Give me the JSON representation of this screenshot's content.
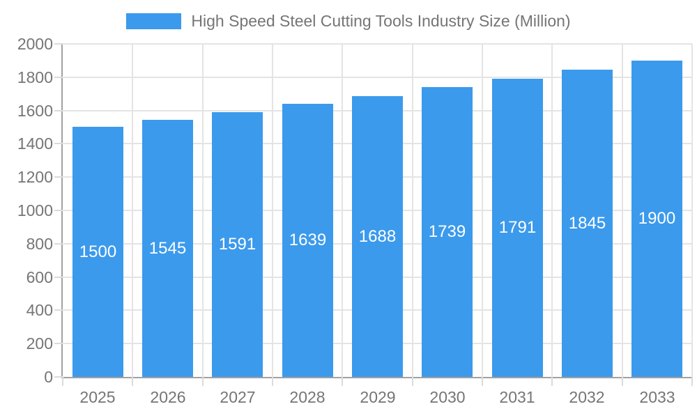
{
  "chart_data": {
    "type": "bar",
    "title": "High Speed Steel Cutting Tools Industry Size (Million)",
    "series": [
      {
        "name": "High Speed Steel Cutting Tools Industry Size (Million)",
        "values": [
          1500,
          1545,
          1591,
          1639,
          1688,
          1739,
          1791,
          1845,
          1900
        ]
      }
    ],
    "categories": [
      "2025",
      "2026",
      "2027",
      "2028",
      "2029",
      "2030",
      "2031",
      "2032",
      "2033"
    ],
    "xlabel": "",
    "ylabel": "",
    "ylim": [
      0,
      2000
    ],
    "yticks": [
      0,
      200,
      400,
      600,
      800,
      1000,
      1200,
      1400,
      1600,
      1800,
      2000
    ],
    "grid": true,
    "legend_position": "top",
    "bar_labels_shown": true,
    "colors": {
      "bar": "#3b9aec",
      "bar_label": "#ffffff",
      "axis_text": "#757575",
      "axis_line": "#a1a1a1",
      "gridline": "#e4e4e4",
      "tick": "#dbdbdb",
      "background": "#ffffff"
    }
  }
}
